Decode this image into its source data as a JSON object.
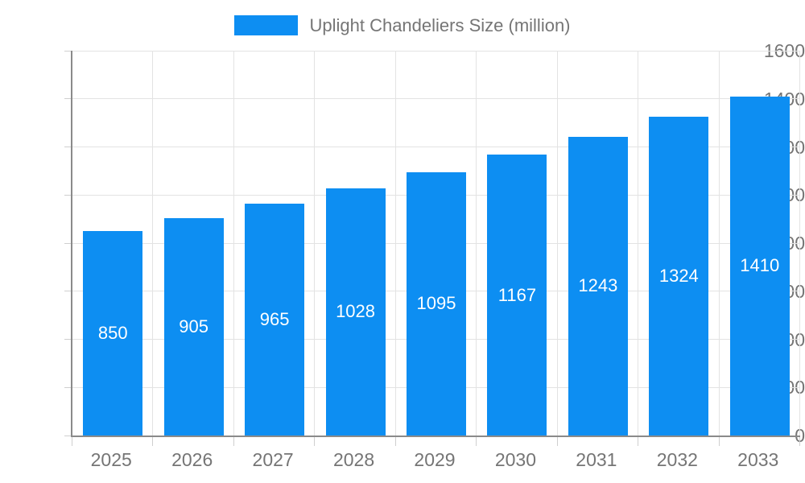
{
  "legend": {
    "label": "Uplight Chandeliers Size (million)"
  },
  "chart_data": {
    "type": "bar",
    "title": "Uplight Chandeliers Size (million)",
    "categories": [
      "2025",
      "2026",
      "2027",
      "2028",
      "2029",
      "2030",
      "2031",
      "2032",
      "2033"
    ],
    "series": [
      {
        "name": "Uplight Chandeliers Size (million)",
        "values": [
          850,
          905,
          965,
          1028,
          1095,
          1167,
          1243,
          1324,
          1410
        ]
      }
    ],
    "xlabel": "",
    "ylabel": "",
    "ylim": [
      0,
      1600
    ],
    "yticks": [
      0,
      200,
      400,
      600,
      800,
      1000,
      1200,
      1400,
      1600
    ],
    "grid": true,
    "legend_position": "top-center",
    "colors": {
      "bar": "#0d8ef2",
      "value_label": "#ffffff",
      "axis_text": "#757575",
      "legend_text": "#757575",
      "grid_line": "#e3e3e3",
      "tick_line": "#cfcfcf",
      "axis_line": "#8a8a8a"
    }
  }
}
